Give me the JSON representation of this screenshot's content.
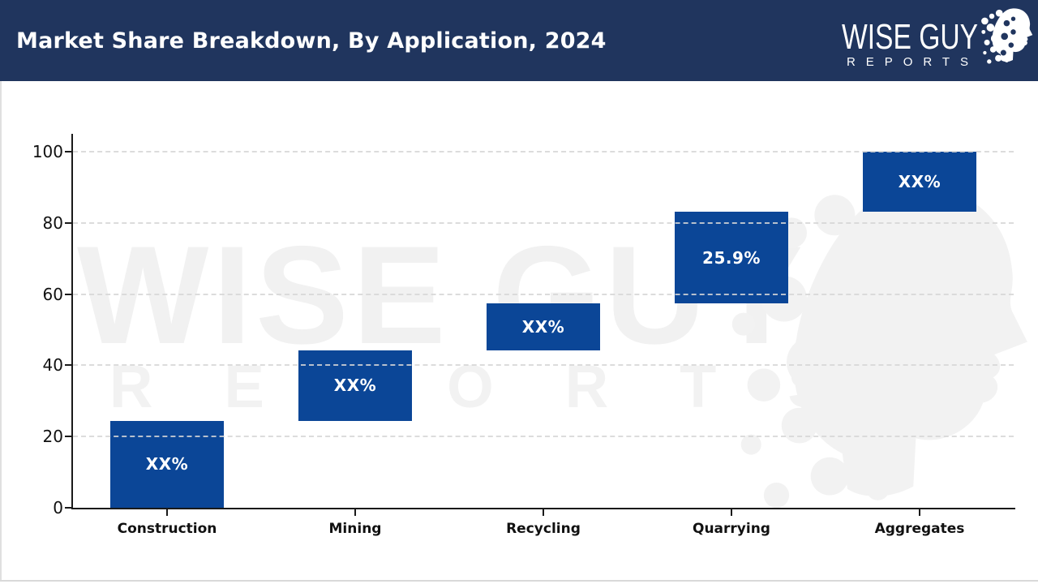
{
  "header": {
    "title": "Market Share Breakdown, By Application, 2024",
    "bg_color": "#20355e",
    "logo": {
      "line1": "WISE GUY",
      "line2": "REPORTS"
    }
  },
  "watermark": {
    "line1": "WISE GUY",
    "line2": "REPORTS"
  },
  "chart_data": {
    "type": "bar",
    "subtype": "waterfall",
    "title": "Market Share Breakdown, By Application, 2024",
    "categories": [
      "Construction",
      "Mining",
      "Recycling",
      "Quarrying",
      "Aggregates"
    ],
    "segments": [
      {
        "category": "Construction",
        "start": 0,
        "end": 24.4,
        "value": 24.4,
        "label": "XX%"
      },
      {
        "category": "Mining",
        "start": 24.4,
        "end": 44.2,
        "value": 19.8,
        "label": "XX%"
      },
      {
        "category": "Recycling",
        "start": 44.2,
        "end": 57.3,
        "value": 13.1,
        "label": "XX%"
      },
      {
        "category": "Quarrying",
        "start": 57.3,
        "end": 83.2,
        "value": 25.9,
        "label": "25.9%"
      },
      {
        "category": "Aggregates",
        "start": 83.2,
        "end": 100,
        "value": 16.8,
        "label": "XX%"
      }
    ],
    "xlabel": "",
    "ylabel": "",
    "ylim": [
      0,
      105
    ],
    "yticks": [
      0,
      20,
      40,
      60,
      80,
      100
    ],
    "grid": "horizontal-dashed",
    "legend": null,
    "bar_color": "#0b4697",
    "bar_label_color": "#ffffff"
  }
}
